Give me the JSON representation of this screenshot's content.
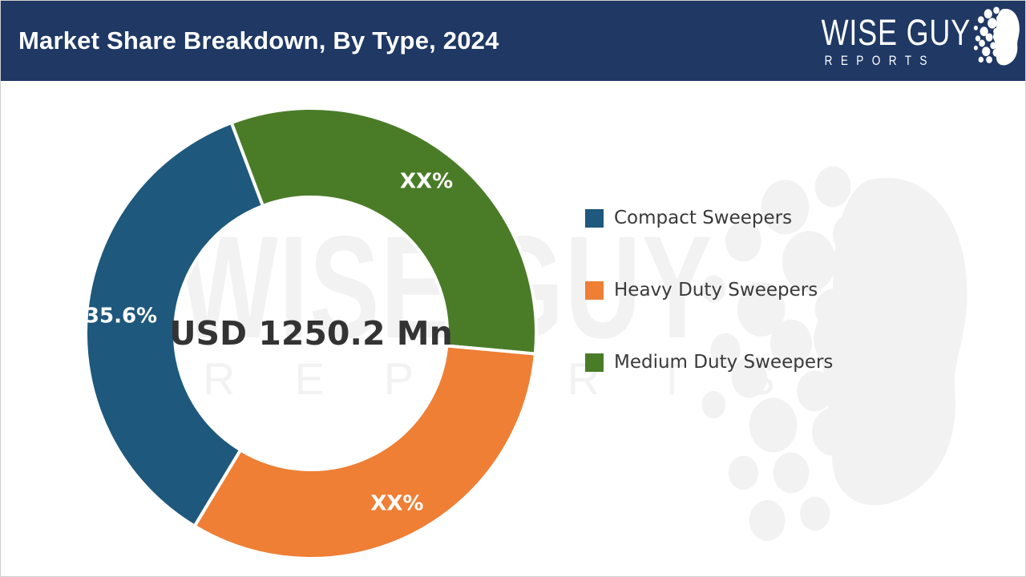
{
  "header": {
    "title": "Market Share Breakdown, By Type, 2024",
    "bg_color": "#1f3864",
    "logo": {
      "line1": "WISE GUY",
      "line2": "REPORTS"
    }
  },
  "watermark": {
    "line1": "WISE GUY",
    "line2": "REPORTS"
  },
  "chart_data": {
    "type": "pie",
    "subtype": "donut",
    "title": "Market Share Breakdown, By Type, 2024",
    "center_label": "USD 1250.2 Mn",
    "legend_position": "right",
    "grid": false,
    "start_angle_deg": -20.7,
    "inner_radius_ratio": 0.6,
    "segments": [
      {
        "label": "Medium Duty Sweepers",
        "value_pct": 32.2,
        "display_label": "XX%",
        "color": "#4a7c28"
      },
      {
        "label": "Heavy Duty Sweepers",
        "value_pct": 32.2,
        "display_label": "XX%",
        "color": "#ee7f35"
      },
      {
        "label": "Compact Sweepers",
        "value_pct": 35.6,
        "display_label": "35.6%",
        "color": "#1e587c"
      }
    ]
  },
  "legend": {
    "items": [
      {
        "label": "Compact Sweepers",
        "color": "#1e587c"
      },
      {
        "label": "Heavy Duty Sweepers",
        "color": "#ee7f35"
      },
      {
        "label": "Medium Duty Sweepers",
        "color": "#4a7c28"
      }
    ]
  }
}
